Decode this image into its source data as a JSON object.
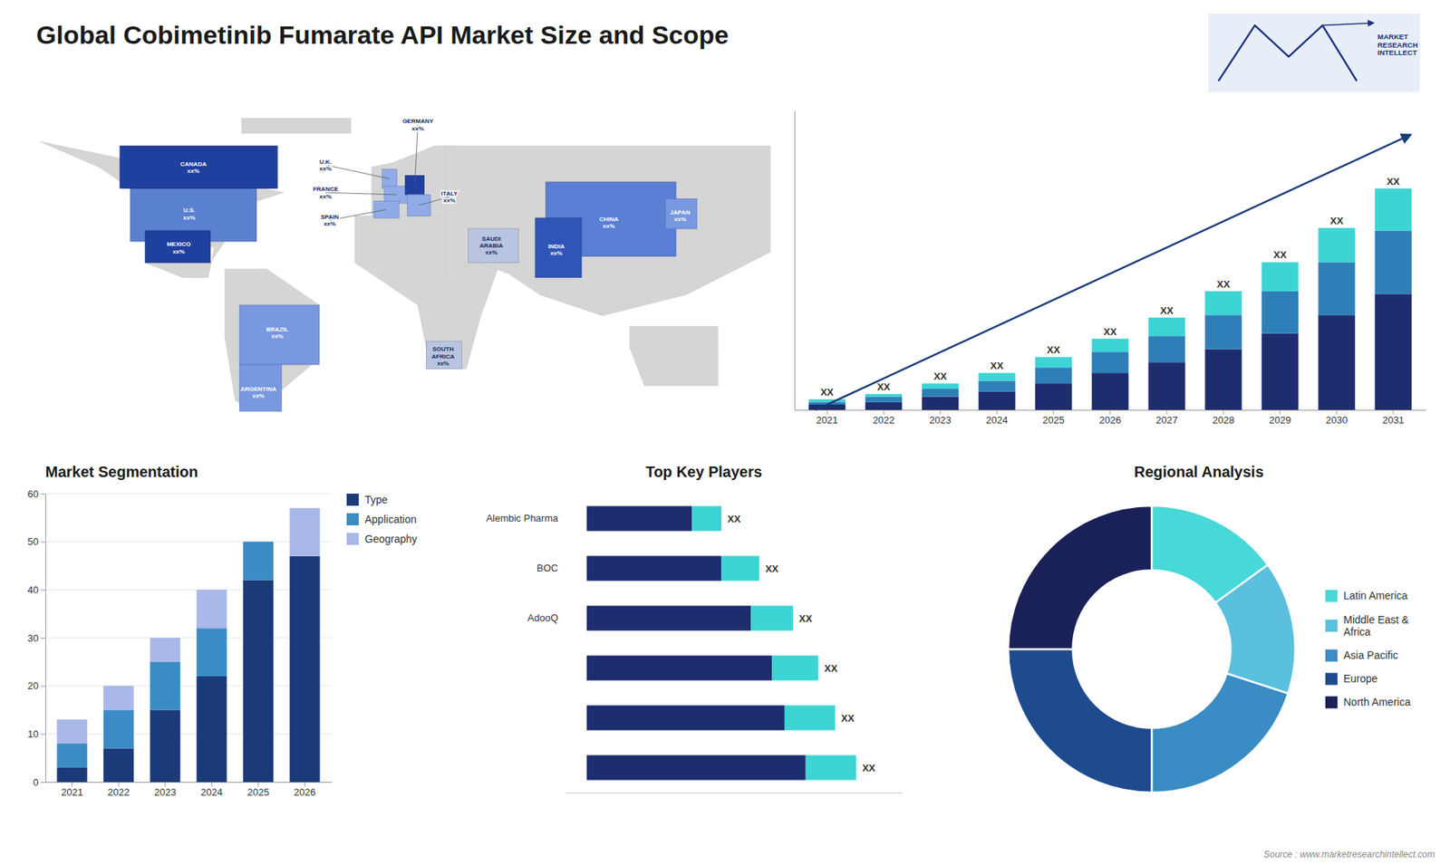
{
  "title": "Global Cobimetinib Fumarate API Market Size and Scope",
  "annotations": [
    "MARKET\nRESEARCH\nINTELLECT",
    "Source : www.marketresearchintellect.com"
  ],
  "chart_data": [
    {
      "type": "map",
      "annotations": [
        "U.S.\nxx%",
        "CANADA\nxx%",
        "MEXICO\nxx%",
        "BRAZIL\nxx%",
        "ARGENTINA\nxx%",
        "U.K.\nxx%",
        "FRANCE\nxx%",
        "SPAIN\nxx%",
        "GERMANY\nxx%",
        "ITALY\nxx%",
        "SAUDI\nARABIA\nxx%",
        "SOUTH\nAFRICA\nxx%",
        "CHINA\nxx%",
        "INDIA\nxx%",
        "JAPAN\nxx%"
      ],
      "colors": [
        "#5a80d0",
        "#2040a0",
        "#2040a0",
        "#7898e0",
        "#7898e0",
        "#90ace8",
        "#90ace8",
        "#90ace8",
        "#2040a0",
        "#90ace8",
        "#b8c4e0",
        "#b8c4e0",
        "#5a7fd4",
        "#3055b8",
        "#7898e0"
      ]
    },
    {
      "type": "bar",
      "stacked": true,
      "categories": [
        "2021",
        "2022",
        "2023",
        "2024",
        "2025",
        "2026",
        "2027",
        "2028",
        "2029",
        "2030",
        "2031"
      ],
      "series": [
        {
          "color": "#1e2d6e",
          "values": [
            2,
            3,
            5,
            7,
            10,
            14,
            18,
            23,
            29,
            36,
            44
          ]
        },
        {
          "color": "#2e7fb8",
          "values": [
            1,
            2,
            3,
            4,
            6,
            8,
            10,
            13,
            16,
            20,
            24
          ]
        },
        {
          "color": "#3dd4d4",
          "values": [
            1,
            1,
            2,
            3,
            4,
            5,
            7,
            9,
            11,
            13,
            16
          ]
        }
      ],
      "ylim": [
        0,
        113.4
      ],
      "tick_labels": "x",
      "annotations": [
        "XX",
        "XX",
        "XX",
        "XX",
        "XX",
        "XX",
        "XX",
        "XX",
        "XX",
        "XX",
        "XX"
      ]
    },
    {
      "type": "bar",
      "stacked": true,
      "title": "Market Segmentation",
      "categories": [
        "2021",
        "2022",
        "2023",
        "2024",
        "2025",
        "2026"
      ],
      "series": [
        {
          "name": "Type",
          "color": "#1a3a7a",
          "values": [
            3,
            7,
            15,
            22,
            42,
            47
          ]
        },
        {
          "name": "Application",
          "color": "#3a8cc4",
          "values": [
            5,
            8,
            10,
            10,
            8,
            0
          ]
        },
        {
          "name": "Geography",
          "color": "#a8b8e8",
          "values": [
            5,
            5,
            5,
            8,
            0,
            10
          ]
        }
      ],
      "ylim": [
        0,
        60
      ],
      "yticks": [
        0,
        10,
        20,
        30,
        40,
        50,
        60
      ],
      "grid": true,
      "legend": "right"
    },
    {
      "type": "bar",
      "orientation": "horizontal",
      "stacked": true,
      "title": "Top Key Players",
      "categories": [
        null,
        null,
        null,
        "AdooQ",
        "BOC",
        "Alembic Pharma"
      ],
      "series": [
        {
          "color": "#1e2d6e",
          "values": [
            52,
            47,
            44,
            39,
            32,
            25
          ]
        },
        {
          "color": "#3dd4d4",
          "values": [
            12,
            12,
            11,
            10,
            9,
            7
          ]
        }
      ],
      "xlim": [
        -5,
        75
      ],
      "tick_labels": "y",
      "annotations": [
        "XX",
        "XX",
        "XX",
        "XX",
        "XX",
        "XX"
      ]
    },
    {
      "type": "pie",
      "title": "Regional Analysis",
      "categories": [
        "Latin America",
        "Middle East &\nAfrica",
        "Asia Pacific",
        "Europe",
        "North America"
      ],
      "values": [
        15,
        15,
        20,
        25,
        25
      ],
      "colors": [
        "#48d8d8",
        "#5bc0de",
        "#3a8cc4",
        "#1e4b8e",
        "#1a2058"
      ],
      "legend": "right"
    }
  ]
}
